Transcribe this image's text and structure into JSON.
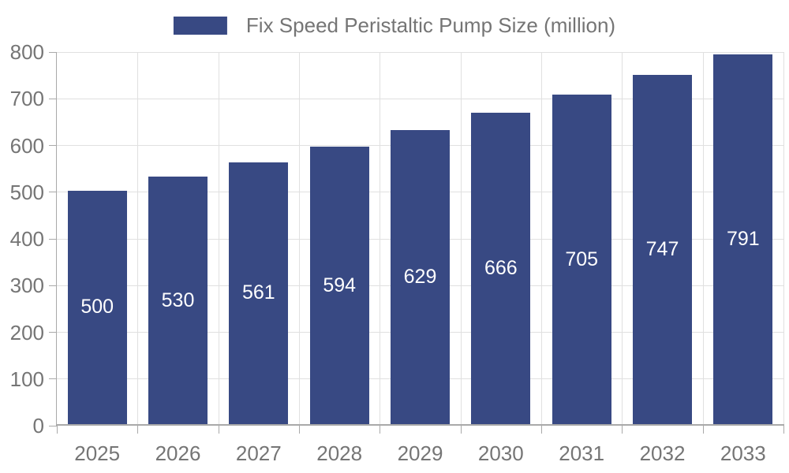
{
  "legend": {
    "label": "Fix Speed Peristaltic Pump Size (million)"
  },
  "colors": {
    "bar": "#384983",
    "axis_text": "#757575",
    "legend_text": "#757575",
    "grid": "#e0e0e0",
    "spine": "#a9a9a9",
    "bar_label": "#ffffff",
    "background": "#ffffff"
  },
  "chart_data": {
    "type": "bar",
    "title": "Fix Speed Peristaltic Pump Size (million)",
    "categories": [
      "2025",
      "2026",
      "2027",
      "2028",
      "2029",
      "2030",
      "2031",
      "2032",
      "2033"
    ],
    "values": [
      500,
      530,
      561,
      594,
      629,
      666,
      705,
      747,
      791
    ],
    "xlabel": "",
    "ylabel": "",
    "ylim": [
      0,
      800
    ],
    "ytick_interval": 100,
    "grid": true,
    "vertical_grid": true,
    "legend_position": "top-center",
    "bar_label_position": "inside-center"
  }
}
